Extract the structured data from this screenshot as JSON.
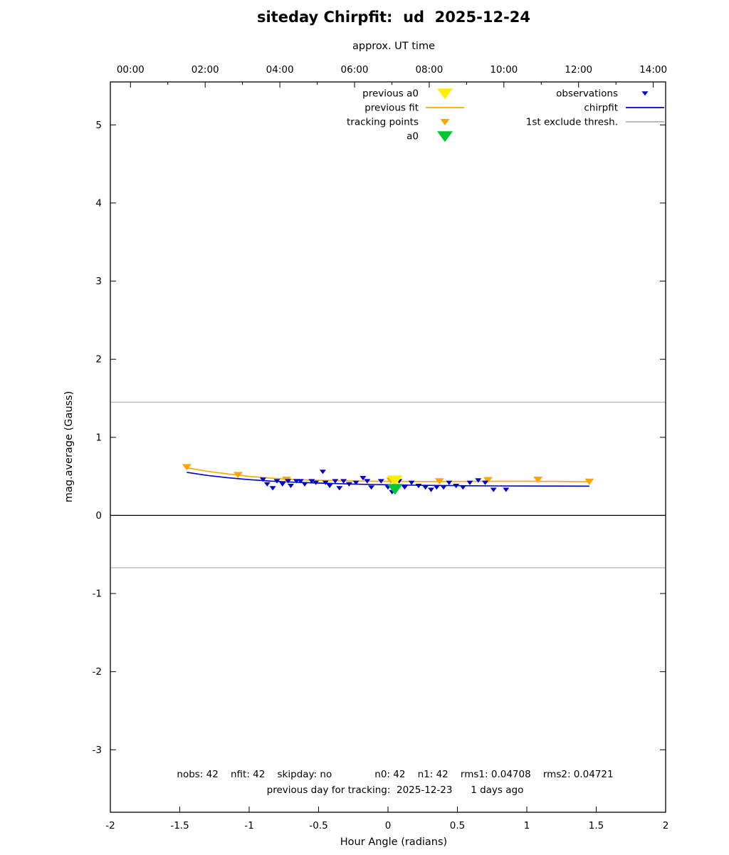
{
  "chart_data": {
    "type": "scatter",
    "title": "siteday Chirpfit:  ud  2025-12-24",
    "x_axis": {
      "label": "Hour Angle (radians)",
      "min": -2,
      "max": 2,
      "ticks": [
        -2,
        -1.5,
        -1,
        -0.5,
        0,
        0.5,
        1,
        1.5,
        2
      ],
      "tick_labels": [
        "-2",
        "-1.5",
        "-1",
        "-0.5",
        "0",
        "0.5",
        "1",
        "1.5",
        "2"
      ]
    },
    "x2_axis": {
      "label": "approx. UT time",
      "ticks": [
        {
          "label": "00:00",
          "x": -1.855
        },
        {
          "label": "02:00",
          "x": -1.317
        },
        {
          "label": "04:00",
          "x": -0.779
        },
        {
          "label": "06:00",
          "x": -0.241
        },
        {
          "label": "08:00",
          "x": 0.297
        },
        {
          "label": "10:00",
          "x": 0.835
        },
        {
          "label": "12:00",
          "x": 1.373
        },
        {
          "label": "14:00",
          "x": 1.911
        }
      ],
      "minor_ticks": [
        -1.586,
        -1.048,
        -0.51,
        0.028,
        0.566,
        1.104,
        1.642
      ]
    },
    "y_axis": {
      "label": "mag.average (Gauss)",
      "min": -3.8,
      "max": 5.55,
      "ticks": [
        -3,
        -2,
        -1,
        0,
        1,
        2,
        3,
        4,
        5
      ],
      "tick_labels": [
        "-3",
        "-2",
        "-1",
        "0",
        "1",
        "2",
        "3",
        "4",
        "5"
      ]
    },
    "reference_lines": [
      {
        "name": "1st exclude thresh. upper",
        "y": 1.45,
        "color": "#b3b3b3"
      },
      {
        "name": "1st exclude thresh. lower",
        "y": -0.67,
        "color": "#b3b3b3"
      },
      {
        "name": "zero line",
        "y": 0,
        "color": "#000000"
      }
    ],
    "series": [
      {
        "name": "previous fit",
        "type": "line",
        "color": "#ffa500",
        "points": [
          [
            -1.45,
            0.61
          ],
          [
            -1.3,
            0.565
          ],
          [
            -1.15,
            0.53
          ],
          [
            -1.0,
            0.5
          ],
          [
            -0.85,
            0.478
          ],
          [
            -0.7,
            0.462
          ],
          [
            -0.55,
            0.452
          ],
          [
            -0.4,
            0.446
          ],
          [
            -0.25,
            0.441
          ],
          [
            -0.1,
            0.438
          ],
          [
            0.05,
            0.436
          ],
          [
            0.2,
            0.434
          ],
          [
            0.4,
            0.434
          ],
          [
            0.6,
            0.436
          ],
          [
            0.8,
            0.438
          ],
          [
            1.0,
            0.438
          ],
          [
            1.2,
            0.436
          ],
          [
            1.45,
            0.432
          ]
        ]
      },
      {
        "name": "chirpfit",
        "type": "line",
        "color": "#0000cc",
        "points": [
          [
            -1.45,
            0.552
          ],
          [
            -1.3,
            0.512
          ],
          [
            -1.15,
            0.482
          ],
          [
            -1.0,
            0.458
          ],
          [
            -0.85,
            0.44
          ],
          [
            -0.7,
            0.427
          ],
          [
            -0.55,
            0.417
          ],
          [
            -0.4,
            0.409
          ],
          [
            -0.25,
            0.402
          ],
          [
            -0.1,
            0.396
          ],
          [
            0.05,
            0.391
          ],
          [
            0.2,
            0.387
          ],
          [
            0.4,
            0.383
          ],
          [
            0.6,
            0.38
          ],
          [
            0.8,
            0.378
          ],
          [
            1.0,
            0.377
          ],
          [
            1.2,
            0.376
          ],
          [
            1.45,
            0.375
          ]
        ]
      },
      {
        "name": "tracking points",
        "type": "scatter",
        "marker": "triangle-down",
        "size": "medium",
        "color": "#ffa500",
        "points": [
          [
            -1.45,
            0.62
          ],
          [
            -1.08,
            0.52
          ],
          [
            -0.73,
            0.46
          ],
          [
            0.02,
            0.45
          ],
          [
            0.37,
            0.44
          ],
          [
            0.72,
            0.455
          ],
          [
            1.08,
            0.46
          ],
          [
            1.45,
            0.435
          ]
        ]
      },
      {
        "name": "observations",
        "type": "scatter",
        "marker": "triangle-down",
        "size": "small",
        "color": "#0000cc",
        "points": [
          [
            -0.9,
            0.46
          ],
          [
            -0.87,
            0.4
          ],
          [
            -0.83,
            0.35
          ],
          [
            -0.8,
            0.44
          ],
          [
            -0.76,
            0.4
          ],
          [
            -0.72,
            0.44
          ],
          [
            -0.7,
            0.38
          ],
          [
            -0.66,
            0.44
          ],
          [
            -0.63,
            0.44
          ],
          [
            -0.6,
            0.4
          ],
          [
            -0.55,
            0.44
          ],
          [
            -0.52,
            0.42
          ],
          [
            -0.47,
            0.56
          ],
          [
            -0.45,
            0.42
          ],
          [
            -0.42,
            0.38
          ],
          [
            -0.38,
            0.44
          ],
          [
            -0.35,
            0.35
          ],
          [
            -0.32,
            0.44
          ],
          [
            -0.28,
            0.4
          ],
          [
            -0.23,
            0.42
          ],
          [
            -0.18,
            0.48
          ],
          [
            -0.15,
            0.44
          ],
          [
            -0.12,
            0.36
          ],
          [
            -0.05,
            0.44
          ],
          [
            0.0,
            0.36
          ],
          [
            0.03,
            0.3
          ],
          [
            0.08,
            0.44
          ],
          [
            0.12,
            0.36
          ],
          [
            0.17,
            0.42
          ],
          [
            0.22,
            0.38
          ],
          [
            0.27,
            0.36
          ],
          [
            0.31,
            0.33
          ],
          [
            0.35,
            0.36
          ],
          [
            0.4,
            0.36
          ],
          [
            0.44,
            0.42
          ],
          [
            0.49,
            0.38
          ],
          [
            0.54,
            0.36
          ],
          [
            0.59,
            0.42
          ],
          [
            0.65,
            0.45
          ],
          [
            0.7,
            0.42
          ],
          [
            0.76,
            0.33
          ],
          [
            0.85,
            0.33
          ]
        ]
      },
      {
        "name": "previous a0",
        "type": "scatter",
        "marker": "triangle-down",
        "size": "large",
        "color": "#ffee00",
        "points": [
          [
            0.05,
            0.45
          ]
        ]
      },
      {
        "name": "a0",
        "type": "scatter",
        "marker": "triangle-down",
        "size": "large",
        "color": "#00c832",
        "points": [
          [
            0.05,
            0.34
          ]
        ]
      }
    ],
    "legend": {
      "columns": [
        {
          "entries": [
            {
              "label": "previous a0",
              "marker": "triangle",
              "size": "large",
              "color": "#ffee00"
            },
            {
              "label": "previous fit",
              "marker": "line",
              "color": "#ffa500"
            },
            {
              "label": "tracking points",
              "marker": "triangle",
              "size": "medium",
              "color": "#ffa500"
            },
            {
              "label": "a0",
              "marker": "triangle",
              "size": "large",
              "color": "#00c832"
            }
          ]
        },
        {
          "entries": [
            {
              "label": "observations",
              "marker": "triangle",
              "size": "small",
              "color": "#0000cc"
            },
            {
              "label": "chirpfit",
              "marker": "line",
              "color": "#0000cc"
            },
            {
              "label": "1st exclude thresh.",
              "marker": "line",
              "color": "#b3b3b3"
            }
          ]
        }
      ]
    },
    "stats": {
      "nobs": 42,
      "nfit": 42,
      "skipday": "no",
      "n0": 42,
      "n1": 42,
      "rms1": 0.04708,
      "rms2": 0.04721,
      "previous_day_for_tracking": "2025-12-23",
      "days_ago": "1 days ago",
      "line1": "nobs: 42    nfit: 42    skipday: no              n0: 42    n1: 42    rms1: 0.04708    rms2: 0.04721",
      "line2": "previous day for tracking:  2025-12-23      1 days ago"
    }
  }
}
